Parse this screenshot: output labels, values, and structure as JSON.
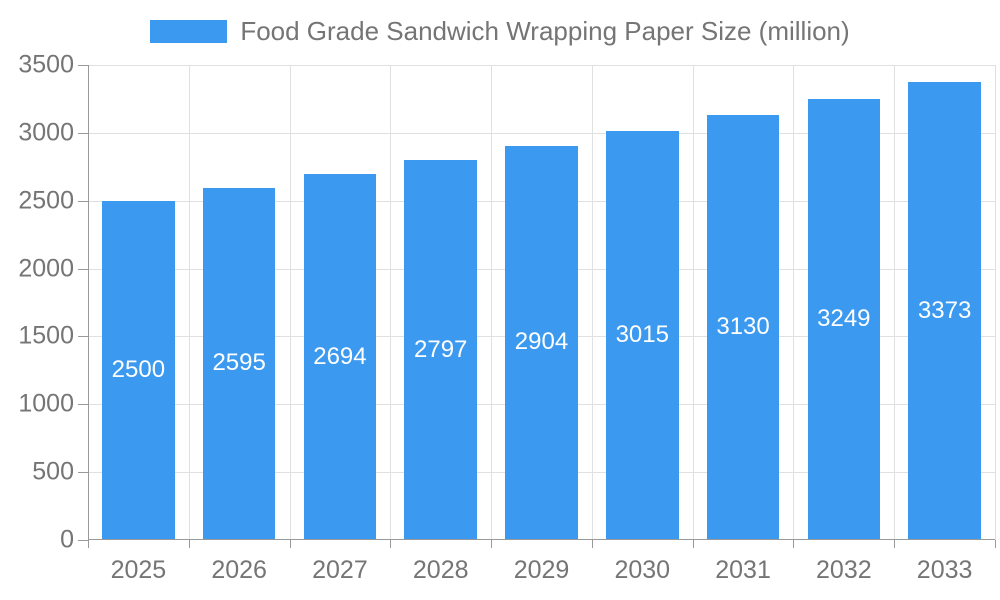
{
  "legend": {
    "label": "Food Grade Sandwich Wrapping Paper Size (million)"
  },
  "chart_data": {
    "type": "bar",
    "title": "Food Grade Sandwich Wrapping Paper Size (million)",
    "series_name": "Food Grade Sandwich Wrapping Paper Size (million)",
    "categories": [
      "2025",
      "2026",
      "2027",
      "2028",
      "2029",
      "2030",
      "2031",
      "2032",
      "2033"
    ],
    "values": [
      2500,
      2595,
      2694,
      2797,
      2904,
      3015,
      3130,
      3249,
      3373
    ],
    "bar_value_labels": [
      "2500",
      "2595",
      "2694",
      "2797",
      "2904",
      "3015",
      "3130",
      "3249",
      "3373"
    ],
    "xlabel": "",
    "ylabel": "",
    "ylim": [
      0,
      3500
    ],
    "y_ticks": [
      0,
      500,
      1000,
      1500,
      2000,
      2500,
      3000,
      3500
    ],
    "grid": true,
    "legend_position": "top",
    "colors": {
      "bar": "#3B99F0",
      "bar_label_text": "#FFFFFF",
      "axis_text": "#757575",
      "grid_line": "#E0E0E0",
      "axis_line": "#999999",
      "background": "#FFFFFF"
    }
  }
}
